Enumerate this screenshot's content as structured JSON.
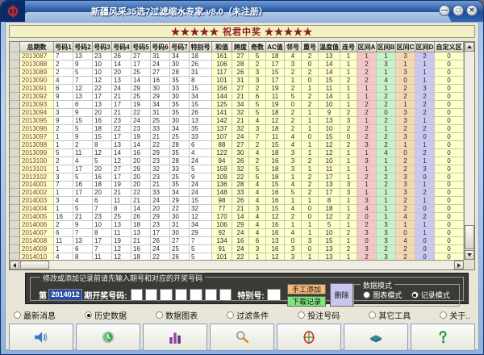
{
  "window": {
    "title": "新疆风采35选7过滤缩水专家 v8.0（未注册）",
    "minimize": "—",
    "maximize": "□",
    "close": "✕",
    "banner": "★★★★★ 祝君中奖 ★★★★★"
  },
  "table": {
    "headers": [
      "总期数",
      "号码1",
      "号码2",
      "号码3",
      "号码4",
      "号码5",
      "号码6",
      "号码7",
      "特别号",
      "和值",
      "跨度",
      "奇数",
      "AC值",
      "邻号",
      "重号",
      "温度值",
      "连号",
      "区间A",
      "区间B",
      "区间C",
      "区间D",
      "自定义区"
    ],
    "selected_row": "2014011",
    "rows": [
      [
        "2013087",
        7,
        13,
        23,
        26,
        27,
        31,
        34,
        18,
        161,
        27,
        5,
        18,
        4,
        2,
        13,
        1,
        1,
        1,
        3,
        2,
        0
      ],
      [
        "2013088",
        2,
        9,
        10,
        14,
        17,
        24,
        30,
        26,
        106,
        28,
        2,
        17,
        3,
        0,
        14,
        1,
        2,
        3,
        1,
        1,
        0
      ],
      [
        "2013089",
        2,
        5,
        10,
        20,
        25,
        27,
        28,
        31,
        117,
        26,
        3,
        15,
        2,
        2,
        14,
        1,
        2,
        1,
        3,
        1,
        0
      ],
      [
        "2013090",
        4,
        7,
        12,
        13,
        14,
        16,
        35,
        8,
        101,
        31,
        3,
        17,
        1,
        0,
        15,
        2,
        2,
        4,
        0,
        1,
        0
      ],
      [
        "2013091",
        6,
        12,
        22,
        24,
        29,
        30,
        33,
        15,
        156,
        27,
        2,
        19,
        2,
        1,
        11,
        1,
        1,
        1,
        2,
        3,
        0
      ],
      [
        "2013092",
        9,
        13,
        17,
        21,
        25,
        29,
        30,
        34,
        144,
        21,
        6,
        11,
        5,
        2,
        14,
        1,
        1,
        2,
        2,
        2,
        0
      ],
      [
        "2013093",
        1,
        6,
        13,
        17,
        19,
        34,
        35,
        15,
        125,
        34,
        5,
        19,
        0,
        2,
        10,
        1,
        2,
        2,
        1,
        2,
        0
      ],
      [
        "2013094",
        3,
        9,
        20,
        21,
        22,
        31,
        35,
        26,
        141,
        32,
        5,
        18,
        2,
        1,
        9,
        2,
        2,
        0,
        3,
        2,
        0
      ],
      [
        "2013095",
        9,
        15,
        16,
        23,
        24,
        25,
        30,
        13,
        142,
        21,
        4,
        12,
        2,
        1,
        13,
        3,
        1,
        2,
        3,
        1,
        0
      ],
      [
        "2013096",
        2,
        5,
        18,
        22,
        23,
        33,
        34,
        35,
        137,
        32,
        3,
        18,
        2,
        1,
        10,
        2,
        2,
        1,
        2,
        2,
        0
      ],
      [
        "2013097",
        1,
        9,
        15,
        17,
        19,
        21,
        25,
        33,
        107,
        24,
        7,
        11,
        4,
        0,
        15,
        0,
        2,
        2,
        3,
        0,
        0
      ],
      [
        "2013098",
        1,
        2,
        8,
        13,
        14,
        22,
        28,
        6,
        88,
        27,
        2,
        15,
        4,
        1,
        12,
        2,
        3,
        2,
        1,
        1,
        0
      ],
      [
        "2013099",
        5,
        11,
        12,
        14,
        16,
        29,
        35,
        4,
        122,
        30,
        4,
        18,
        3,
        1,
        12,
        1,
        1,
        4,
        0,
        2,
        0
      ],
      [
        "2013100",
        2,
        4,
        5,
        12,
        20,
        23,
        28,
        24,
        94,
        26,
        2,
        16,
        3,
        2,
        10,
        1,
        3,
        1,
        2,
        1,
        0
      ],
      [
        "2013101",
        1,
        17,
        20,
        27,
        29,
        32,
        33,
        5,
        159,
        32,
        5,
        18,
        3,
        1,
        11,
        1,
        1,
        1,
        2,
        3,
        0
      ],
      [
        "2013102",
        3,
        5,
        16,
        17,
        20,
        23,
        25,
        9,
        109,
        22,
        5,
        18,
        1,
        2,
        17,
        1,
        2,
        2,
        3,
        0,
        0
      ],
      [
        "2014001",
        7,
        16,
        18,
        19,
        20,
        21,
        35,
        24,
        136,
        28,
        4,
        15,
        4,
        2,
        13,
        3,
        1,
        2,
        3,
        1,
        0
      ],
      [
        "2014002",
        1,
        17,
        20,
        21,
        22,
        33,
        34,
        24,
        148,
        33,
        4,
        16,
        5,
        2,
        17,
        3,
        1,
        1,
        3,
        2,
        0
      ],
      [
        "2014003",
        3,
        4,
        6,
        11,
        21,
        24,
        29,
        15,
        98,
        26,
        4,
        16,
        1,
        1,
        8,
        1,
        3,
        1,
        2,
        1,
        0
      ],
      [
        "2014004",
        1,
        5,
        7,
        8,
        14,
        20,
        22,
        32,
        77,
        21,
        3,
        15,
        4,
        0,
        18,
        1,
        4,
        1,
        2,
        0,
        0
      ],
      [
        "2014005",
        16,
        21,
        23,
        25,
        26,
        29,
        30,
        12,
        170,
        14,
        4,
        12,
        2,
        0,
        12,
        2,
        0,
        1,
        4,
        2,
        0
      ],
      [
        "2014006",
        2,
        9,
        10,
        13,
        18,
        23,
        31,
        34,
        106,
        29,
        4,
        16,
        1,
        1,
        5,
        1,
        2,
        3,
        1,
        1,
        0
      ],
      [
        "2014007",
        6,
        7,
        8,
        11,
        13,
        17,
        30,
        29,
        92,
        24,
        4,
        16,
        4,
        1,
        10,
        2,
        3,
        3,
        0,
        1,
        0
      ],
      [
        "2014008",
        11,
        13,
        17,
        19,
        21,
        26,
        27,
        7,
        134,
        16,
        6,
        13,
        0,
        3,
        15,
        1,
        0,
        3,
        4,
        0,
        0
      ],
      [
        "2014009",
        1,
        6,
        7,
        12,
        16,
        24,
        25,
        5,
        91,
        24,
        3,
        16,
        3,
        0,
        13,
        2,
        3,
        2,
        2,
        0,
        0
      ],
      [
        "2014010",
        4,
        8,
        11,
        12,
        18,
        22,
        26,
        5,
        101,
        22,
        1,
        12,
        3,
        1,
        13,
        1,
        2,
        3,
        2,
        0,
        0
      ],
      [
        "2014011",
        3,
        12,
        18,
        21,
        22,
        29,
        34,
        13,
        139,
        31,
        3,
        20,
        3,
        3,
        15,
        1,
        1,
        2,
        2,
        2,
        0
      ]
    ]
  },
  "edit_panel": {
    "group_title": "修改或添加记录前请先输入期号和对应的开奖号码",
    "prefix_label": "第",
    "period_value": "2014012",
    "mid_label": "期开奖号码:",
    "special_label": "特别号:",
    "manual_add": "手工添加",
    "download": "下载记录",
    "delete": "删除",
    "mode_title": "数据模式",
    "mode_options": [
      {
        "label": "图表模式",
        "selected": false
      },
      {
        "label": "记录模式",
        "selected": true
      }
    ]
  },
  "nav_tabs": [
    {
      "label": "最新消息",
      "selected": false
    },
    {
      "label": "历史数据",
      "selected": true
    },
    {
      "label": "数据图表",
      "selected": false
    },
    {
      "label": "过滤条件",
      "selected": false
    },
    {
      "label": "投注号码",
      "selected": false
    },
    {
      "label": "其它工具",
      "selected": false
    },
    {
      "label": "关于..",
      "selected": false
    }
  ],
  "toolbar_icons": [
    "speaker-icon",
    "globe-icon",
    "bar-chart-icon",
    "magnifier-filter-icon",
    "target-icon",
    "book-icon",
    "question-icon"
  ],
  "colors": {
    "titlebar_blue": "#1F4E98",
    "band_a_pink": "#F6C6C6",
    "band_b_green": "#C6F2C6",
    "band_c_peach": "#F6D8B0",
    "band_d_lavender": "#CAC8F2",
    "highlight_yellow": "#FFFFC8",
    "banner_red": "#8E1F1F"
  }
}
